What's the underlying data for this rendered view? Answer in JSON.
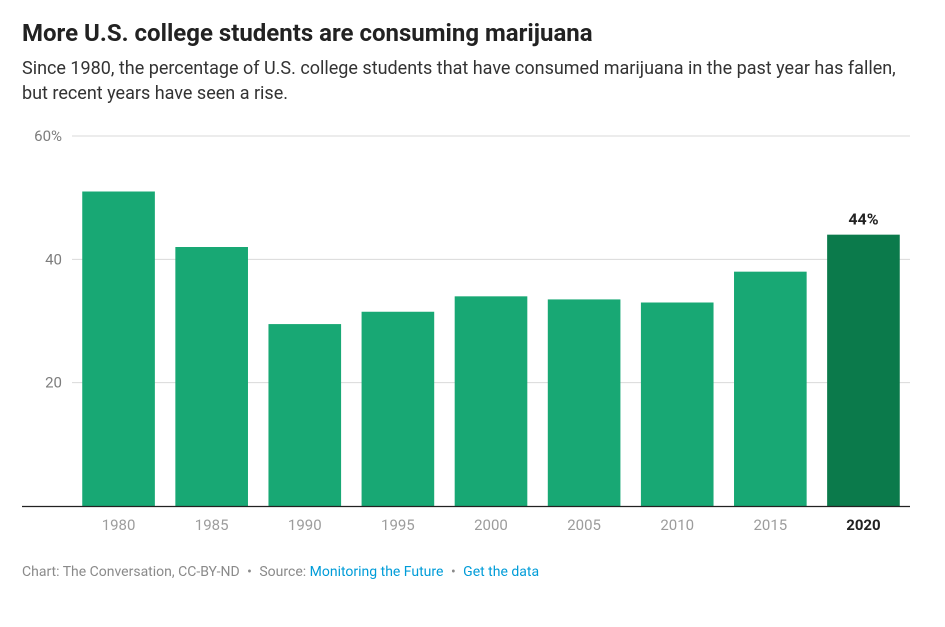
{
  "header": {
    "title": "More U.S. college students are consuming marijuana",
    "subtitle": "Since 1980, the percentage of U.S. college students that have consumed marijuana in the past year has fallen, but recent years have seen a rise."
  },
  "chart": {
    "type": "bar",
    "categories": [
      "1980",
      "1985",
      "1990",
      "1995",
      "2000",
      "2005",
      "2010",
      "2015",
      "2020"
    ],
    "values": [
      51,
      42,
      29.5,
      31.5,
      34,
      33.5,
      33,
      38,
      44
    ],
    "bar_colors": [
      "#18a874",
      "#18a874",
      "#18a874",
      "#18a874",
      "#18a874",
      "#18a874",
      "#18a874",
      "#18a874",
      "#0b7a4b"
    ],
    "highlight_index": 8,
    "highlight_label": "44%",
    "yticks": [
      20,
      40,
      60
    ],
    "ytick_labels": [
      "20",
      "40",
      "60%"
    ],
    "ylim": [
      0,
      60
    ],
    "background_color": "#ffffff",
    "grid_color": "#d9d9d9",
    "axis_color": "#222222",
    "bar_gap_ratio": 0.22,
    "title_fontsize": 24,
    "subtitle_fontsize": 18,
    "tick_fontsize": 15,
    "value_label_fontsize": 16,
    "x_highlight_bold": true
  },
  "footer": {
    "prefix": "Chart: The Conversation, CC-BY-ND",
    "source_label": "Source:",
    "source_link_text": "Monitoring the Future",
    "data_link_text": "Get the data"
  }
}
